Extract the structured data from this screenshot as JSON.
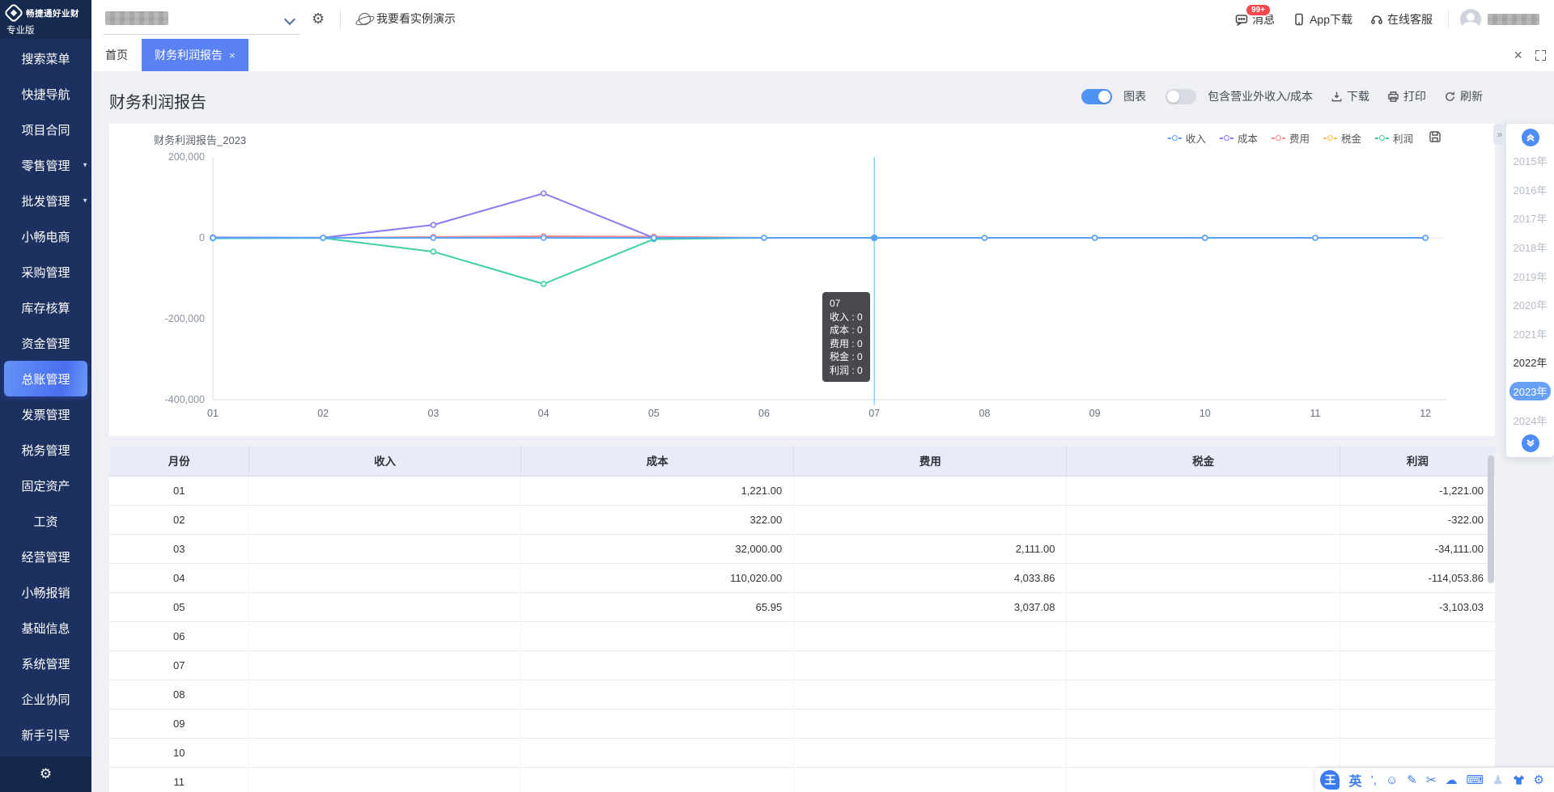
{
  "brand": {
    "name": "畅捷通好业财",
    "edition": "专业版"
  },
  "topbar": {
    "demo_text": "我要看实例演示",
    "messages_label": "消息",
    "messages_badge": "99+",
    "app_download_label": "App下载",
    "support_label": "在线客服"
  },
  "tabbar": {
    "tabs": [
      {
        "label": "首页",
        "active": false,
        "closable": false
      },
      {
        "label": "财务利润报告",
        "active": true,
        "closable": true
      }
    ]
  },
  "sidebar": {
    "items": [
      {
        "label": "搜索菜单"
      },
      {
        "label": "快捷导航"
      },
      {
        "label": "项目合同"
      },
      {
        "label": "零售管理",
        "caret": true
      },
      {
        "label": "批发管理",
        "caret": true
      },
      {
        "label": "小畅电商"
      },
      {
        "label": "采购管理"
      },
      {
        "label": "库存核算"
      },
      {
        "label": "资金管理"
      },
      {
        "label": "总账管理",
        "active": true
      },
      {
        "label": "发票管理"
      },
      {
        "label": "税务管理"
      },
      {
        "label": "固定资产"
      },
      {
        "label": "工资"
      },
      {
        "label": "经营管理"
      },
      {
        "label": "小畅报销"
      },
      {
        "label": "基础信息"
      },
      {
        "label": "系统管理"
      },
      {
        "label": "企业协同"
      },
      {
        "label": "新手引导"
      }
    ]
  },
  "page": {
    "title": "财务利润报告",
    "toolbar": {
      "chart_toggle_label": "图表",
      "chart_toggle_on": true,
      "include_toggle_label": "包含营业外收入/成本",
      "include_toggle_on": false,
      "download_label": "下载",
      "print_label": "打印",
      "refresh_label": "刷新"
    }
  },
  "chart_data": {
    "type": "line",
    "title": "财务利润报告_2023",
    "x": [
      "01",
      "02",
      "03",
      "04",
      "05",
      "06",
      "07",
      "08",
      "09",
      "10",
      "11",
      "12"
    ],
    "ylim": [
      -400000,
      200000
    ],
    "yticks": [
      {
        "label": "200,000",
        "value": 200000
      },
      {
        "label": "0",
        "value": 0
      },
      {
        "label": "-200,000",
        "value": -200000
      },
      {
        "label": "-400,000",
        "value": -400000
      }
    ],
    "grid": "zero-line-only",
    "legend_position": "top-right",
    "legend_order": [
      "收入",
      "成本",
      "费用",
      "税金",
      "利润"
    ],
    "series": [
      {
        "name": "税金",
        "color": "#f6c354",
        "values": [
          0,
          0,
          0,
          0,
          0,
          0,
          0,
          0,
          0,
          0,
          0,
          0
        ]
      },
      {
        "name": "费用",
        "color": "#f28b8b",
        "values": [
          0,
          0,
          2111,
          4033.86,
          3037.08,
          0,
          0,
          0,
          0,
          0,
          0,
          0
        ]
      },
      {
        "name": "成本",
        "color": "#8a7bf0",
        "values": [
          1221,
          322,
          32000,
          110020,
          65.95,
          0,
          0,
          0,
          0,
          0,
          0,
          0
        ]
      },
      {
        "name": "利润",
        "color": "#3ccfa5",
        "values": [
          -1221,
          -322,
          -34111,
          -114053.86,
          -3103.03,
          0,
          0,
          0,
          0,
          0,
          0,
          0
        ]
      },
      {
        "name": "收入",
        "color": "#59a2f6",
        "values": [
          0,
          0,
          0,
          0,
          0,
          0,
          0,
          0,
          0,
          0,
          0,
          0
        ]
      }
    ],
    "highlight": {
      "month": "07",
      "series": "收入"
    }
  },
  "tooltip": {
    "title": "07",
    "rows": [
      {
        "label": "收入",
        "value": "0"
      },
      {
        "label": "成本",
        "value": "0"
      },
      {
        "label": "费用",
        "value": "0"
      },
      {
        "label": "税金",
        "value": "0"
      },
      {
        "label": "利润",
        "value": "0"
      }
    ]
  },
  "years": {
    "items": [
      "2015年",
      "2016年",
      "2017年",
      "2018年",
      "2019年",
      "2020年",
      "2021年",
      "2022年",
      "2023年",
      "2024年"
    ],
    "selected": "2023年",
    "emphasized": "2022年"
  },
  "table": {
    "headers": [
      "月份",
      "收入",
      "成本",
      "费用",
      "税金",
      "利润"
    ],
    "rows": [
      [
        "01",
        "",
        "1,221.00",
        "",
        "",
        "-1,221.00"
      ],
      [
        "02",
        "",
        "322.00",
        "",
        "",
        "-322.00"
      ],
      [
        "03",
        "",
        "32,000.00",
        "2,111.00",
        "",
        "-34,111.00"
      ],
      [
        "04",
        "",
        "110,020.00",
        "4,033.86",
        "",
        "-114,053.86"
      ],
      [
        "05",
        "",
        "65.95",
        "3,037.08",
        "",
        "-3,103.03"
      ],
      [
        "06",
        "",
        "",
        "",
        "",
        ""
      ],
      [
        "07",
        "",
        "",
        "",
        "",
        ""
      ],
      [
        "08",
        "",
        "",
        "",
        "",
        ""
      ],
      [
        "09",
        "",
        "",
        "",
        "",
        ""
      ],
      [
        "10",
        "",
        "",
        "",
        "",
        ""
      ],
      [
        "11",
        "",
        "",
        "",
        "",
        ""
      ]
    ]
  },
  "ime": {
    "logo": "王",
    "mode": "英"
  }
}
